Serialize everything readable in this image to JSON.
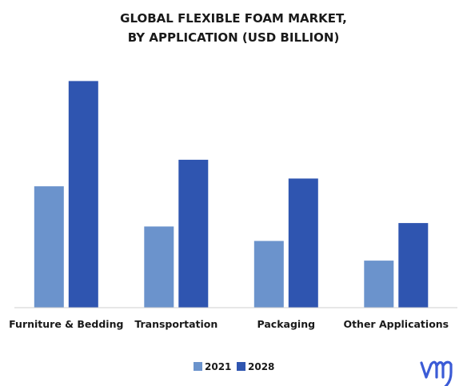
{
  "chart_data": {
    "type": "bar",
    "title_lines": [
      "GLOBAL FLEXIBLE FOAM MARKET,",
      "BY APPLICATION (USD BILLION)"
    ],
    "xlabel": "",
    "ylabel": "",
    "categories": [
      "Furniture & Bedding",
      "Transportation",
      "Packaging",
      "Other Applications"
    ],
    "series": [
      {
        "name": "2021",
        "color": "#6b93cc",
        "values": [
          14.2,
          9.5,
          7.8,
          5.5
        ]
      },
      {
        "name": "2028",
        "color": "#2f55b0",
        "values": [
          26.5,
          17.3,
          15.1,
          9.9
        ]
      }
    ],
    "ylim": [
      0,
      30
    ],
    "grid": false,
    "legend_position": "bottom-center"
  },
  "logo": {
    "name": "vmr-logo",
    "text": "VMR",
    "color": "#3b5bd6"
  }
}
